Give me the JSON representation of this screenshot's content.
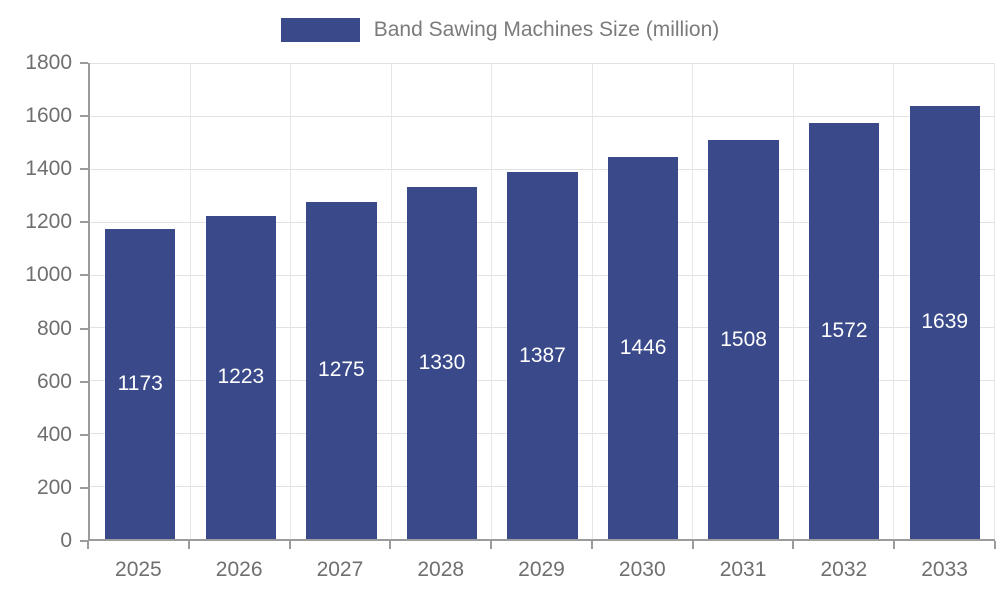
{
  "legend": {
    "label": "Band Sawing Machines Size (million)",
    "swatch_color": "#39498A"
  },
  "chart_data": {
    "type": "bar",
    "title": "Band Sawing Machines Size (million)",
    "categories": [
      "2025",
      "2026",
      "2027",
      "2028",
      "2029",
      "2030",
      "2031",
      "2032",
      "2033"
    ],
    "values": [
      1173,
      1223,
      1275,
      1330,
      1387,
      1446,
      1508,
      1572,
      1639
    ],
    "series_name": "Band Sawing Machines Size (million)",
    "xlabel": "",
    "ylabel": "",
    "ylim": [
      0,
      1800
    ],
    "ytick_step": 200,
    "grid": true,
    "legend_position": "top",
    "bar_color": "#39498A",
    "bar_width_fraction": 0.7,
    "value_label_color": "#FFFFFF",
    "value_label_position": "center",
    "axis_color": "#9b9b9b",
    "gridline_color": "#e2e2e2",
    "tick_label_color": "#6f6f6f"
  }
}
